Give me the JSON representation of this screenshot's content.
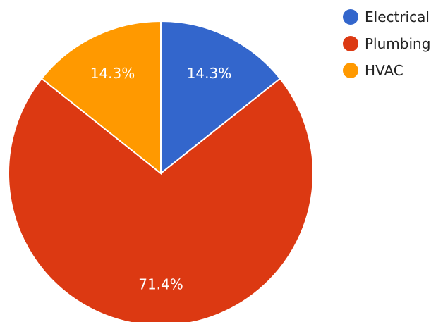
{
  "chart_data": {
    "type": "pie",
    "labels": [
      "Electrical",
      "Plumbing",
      "HVAC"
    ],
    "values": [
      14.3,
      71.4,
      14.3
    ],
    "data_labels": [
      "14.3%",
      "71.4%",
      "14.3%"
    ],
    "colors": [
      "#3366cc",
      "#dc3912",
      "#ff9900"
    ],
    "legend_position": "top-right"
  }
}
